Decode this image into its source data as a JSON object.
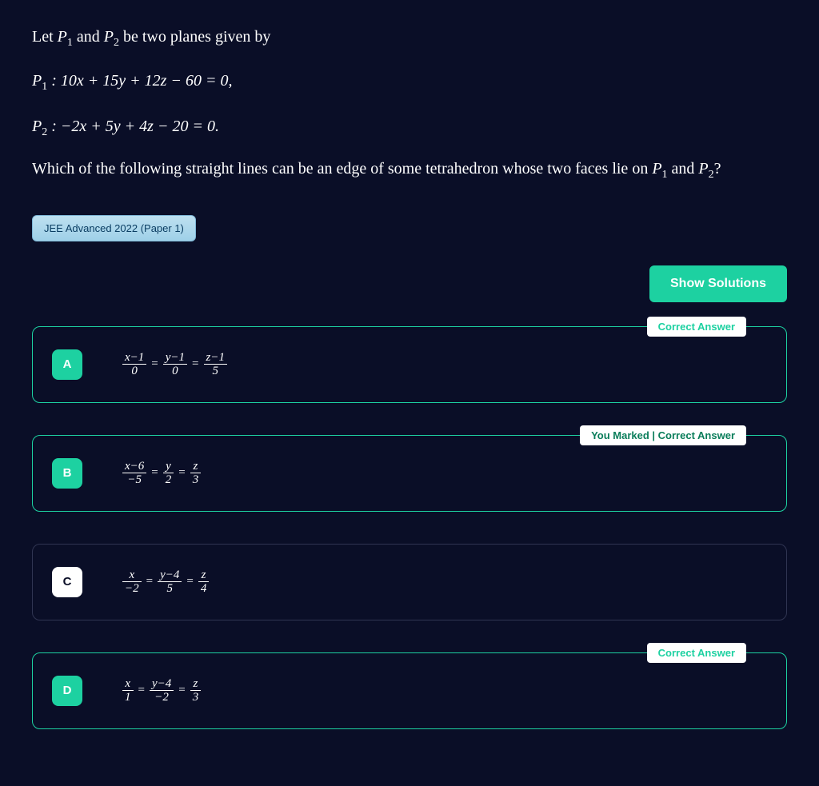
{
  "colors": {
    "background": "#0a0e27",
    "text": "#ffffff",
    "accent_green": "#1dd1a1",
    "tag_bg": "#bde0f0",
    "tag_text": "#0a3d62",
    "plain_border": "#303552",
    "badge_bg": "#ffffff",
    "badge_correct_text": "#1dd1a1",
    "badge_marked_text": "#0a7d5a"
  },
  "typography": {
    "question_fontsize": 20,
    "option_math_fontsize": 15,
    "badge_fontsize": 13,
    "button_fontsize": 16,
    "tag_fontsize": 13
  },
  "question": {
    "intro": "Let P₁ and P₂ be two planes given by",
    "plane1_label": "P₁ :",
    "plane1_eq": "10x + 15y + 12z − 60 = 0,",
    "plane2_label": "P₂ :",
    "plane2_eq": "−2x + 5y + 4z − 20 = 0.",
    "followup": "Which of the following straight lines can be an edge of some tetrahedron whose two faces lie on P₁ and P₂?"
  },
  "exam_tag": "JEE Advanced 2022 (Paper 1)",
  "buttons": {
    "show_solutions": "Show Solutions"
  },
  "badges": {
    "correct": "Correct Answer",
    "marked_correct": "You Marked | Correct Answer"
  },
  "options": [
    {
      "letter": "A",
      "letter_style": "green",
      "card_style": "correct",
      "badge": "correct",
      "fractions": [
        {
          "num": "x−1",
          "den": "0"
        },
        {
          "num": "y−1",
          "den": "0"
        },
        {
          "num": "z−1",
          "den": "5"
        }
      ]
    },
    {
      "letter": "B",
      "letter_style": "green",
      "card_style": "correct",
      "badge": "marked_correct",
      "fractions": [
        {
          "num": "x−6",
          "den": "−5"
        },
        {
          "num": "y",
          "den": "2"
        },
        {
          "num": "z",
          "den": "3"
        }
      ]
    },
    {
      "letter": "C",
      "letter_style": "white",
      "card_style": "plain",
      "badge": null,
      "fractions": [
        {
          "num": "x",
          "den": "−2"
        },
        {
          "num": "y−4",
          "den": "5"
        },
        {
          "num": "z",
          "den": "4"
        }
      ]
    },
    {
      "letter": "D",
      "letter_style": "green",
      "card_style": "correct",
      "badge": "correct",
      "fractions": [
        {
          "num": "x",
          "den": "1"
        },
        {
          "num": "y−4",
          "den": "−2"
        },
        {
          "num": "z",
          "den": "3"
        }
      ]
    }
  ]
}
